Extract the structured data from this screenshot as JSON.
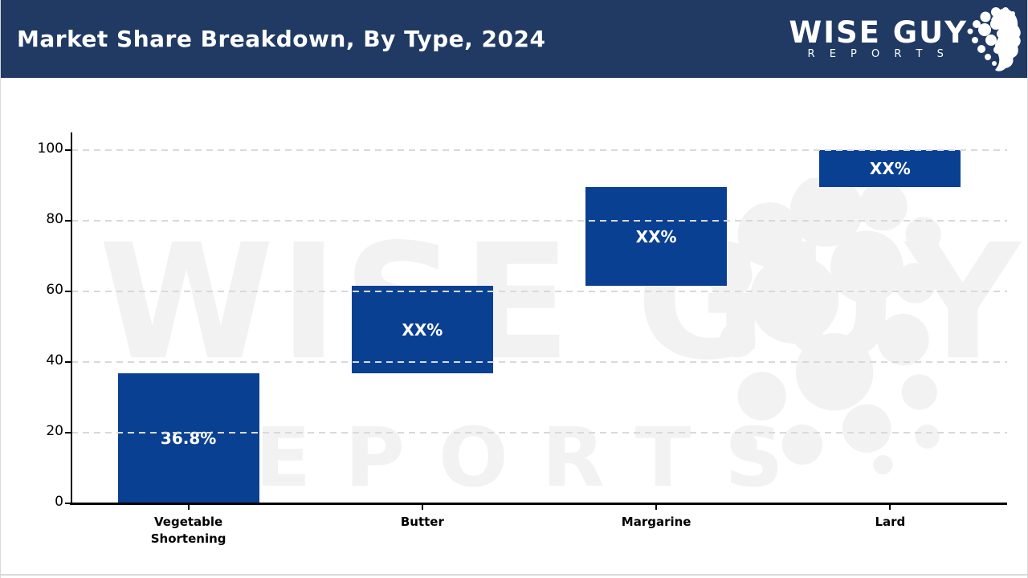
{
  "header": {
    "title": "Market Share Breakdown, By Type, 2024"
  },
  "logo": {
    "name": "WISE GUY",
    "subtitle": "R E P O R T S"
  },
  "watermark": {
    "line1": "WISE GUY",
    "line2": "REPORTS"
  },
  "chart_data": {
    "type": "bar",
    "subtype": "waterfall",
    "title": "Market Share Breakdown, By Type, 2024",
    "categories": [
      {
        "name": "Vegetable Shortening",
        "display": "Vegetable\nShortening"
      },
      {
        "name": "Butter",
        "display": "Butter"
      },
      {
        "name": "Margarine",
        "display": "Margarine"
      },
      {
        "name": "Lard",
        "display": "Lard"
      }
    ],
    "segments": [
      {
        "category": "Vegetable Shortening",
        "start": 0,
        "end": 36.8,
        "label": "36.8%"
      },
      {
        "category": "Butter",
        "start": 36.8,
        "end": 61.5,
        "label": "XX%"
      },
      {
        "category": "Margarine",
        "start": 61.5,
        "end": 89.5,
        "label": "XX%"
      },
      {
        "category": "Lard",
        "start": 89.5,
        "end": 100,
        "label": "XX%"
      }
    ],
    "ylim": [
      0,
      105
    ],
    "yticks": [
      0,
      20,
      40,
      60,
      80,
      100
    ],
    "ytick_labels": [
      "0",
      "20",
      "40",
      "60",
      "80",
      "100"
    ],
    "xlabel": "",
    "ylabel": "",
    "grid": "horizontal-dashed",
    "legend": "none",
    "bar_color": "#0a4092",
    "bar_label_color": "#ffffff",
    "grid_color": "#d9d9d9",
    "axis_color": "#000000"
  },
  "colors": {
    "header_bg": "#203a64",
    "header_text": "#ffffff",
    "watermark": "#f2f2f2",
    "page_bg": "#ffffff",
    "border": "#d9d9d9"
  }
}
